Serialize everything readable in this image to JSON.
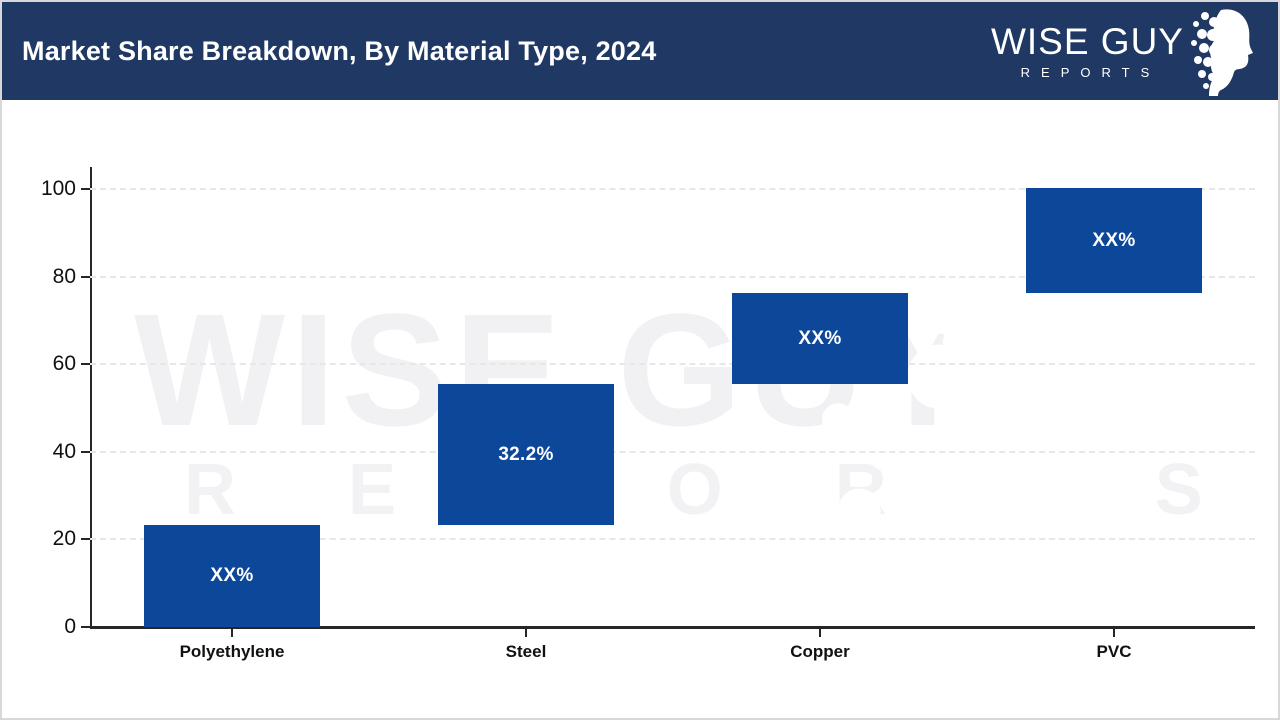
{
  "header": {
    "title": "Market Share Breakdown, By Material Type, 2024",
    "bg_color": "#203864",
    "logo": {
      "line1": "WISE GUY",
      "line2": "REPORTS"
    }
  },
  "watermark": {
    "line1": "WISE GUY",
    "line2": "R E P O R T S"
  },
  "chart_data": {
    "type": "bar",
    "subtype": "floating-waterfall",
    "title": "Market Share Breakdown, By Material Type, 2024",
    "categories": [
      "Polyethylene",
      "Steel",
      "Copper",
      "PVC"
    ],
    "series": [
      {
        "category": "Polyethylene",
        "start": 0,
        "end": 23.2,
        "label": "XX%"
      },
      {
        "category": "Steel",
        "start": 23.2,
        "end": 55.4,
        "label": "32.2%"
      },
      {
        "category": "Copper",
        "start": 55.4,
        "end": 76.2,
        "label": "XX%"
      },
      {
        "category": "PVC",
        "start": 76.2,
        "end": 100.2,
        "label": "XX%"
      }
    ],
    "xlabel": "",
    "ylabel": "",
    "ylim": [
      0,
      105
    ],
    "yticks": [
      0,
      20,
      40,
      60,
      80,
      100
    ],
    "grid": "horizontal-dashed",
    "legend": "none",
    "bar_color": "#0d4799",
    "bar_label_color": "#ffffff",
    "axis_color": "#262626"
  }
}
